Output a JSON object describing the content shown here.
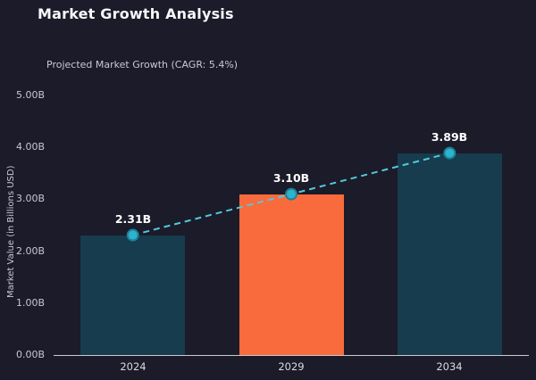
{
  "title": "Market Growth Analysis",
  "subtitle": "Projected Market Growth (CAGR: 5.4%)",
  "colors": {
    "background": "#1b1b29",
    "bar_teal": "#163c4d",
    "bar_orange": "#f96b3c",
    "trend_line": "#53c8dd",
    "marker_fill": "#2db3cc",
    "marker_edge": "#1b819a",
    "axis": "#c9cad1",
    "title_text": "#f7f8fa",
    "muted_text": "#c9cad3"
  },
  "chart_data": {
    "type": "bar",
    "title": "Market Growth Analysis",
    "subtitle": "Projected Market Growth (CAGR: 5.4%)",
    "categories": [
      "2024",
      "2029",
      "2034"
    ],
    "values": [
      2.31,
      3.1,
      3.89
    ],
    "value_labels": [
      "2.31B",
      "3.10B",
      "3.89B"
    ],
    "bar_colors": [
      "#163c4d",
      "#f96b3c",
      "#163c4d"
    ],
    "xlabel": "",
    "ylabel": "Market Value (in Billions USD)",
    "ylim": [
      0,
      5
    ],
    "yticks": [
      "0.00B",
      "1.00B",
      "2.00B",
      "3.00B",
      "4.00B",
      "5.00B"
    ],
    "grid": false,
    "legend": "none",
    "overlay_trend_line": true,
    "trend_line_style": "dashed"
  }
}
